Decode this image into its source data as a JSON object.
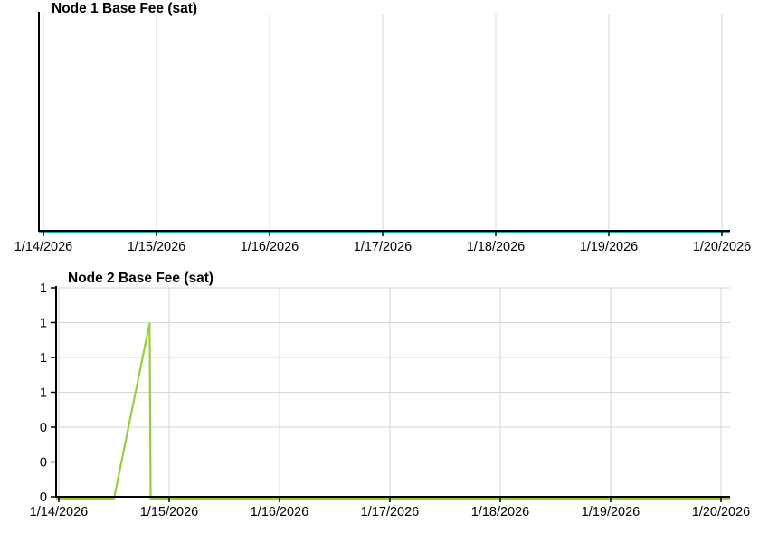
{
  "page": {
    "background": "#ffffff"
  },
  "colors": {
    "axis": "#000000",
    "gridline": "#d6d6d6",
    "tick_label_text": "#000000",
    "node1_line": "#35a2ac",
    "node2_line": "#9bcc3a"
  },
  "chart_data": [
    {
      "id": "node1",
      "type": "line",
      "title": "Node 1 Base Fee (sat)",
      "x_unit": "days since 1/14/2026",
      "x_tick_labels": [
        "1/14/2026",
        "1/15/2026",
        "1/16/2026",
        "1/17/2026",
        "1/18/2026",
        "1/19/2026",
        "1/20/2026"
      ],
      "x_tick_days": [
        0,
        1,
        2,
        3,
        4,
        5,
        6
      ],
      "y_tick_labels": [],
      "ylim": [
        0,
        1.2
      ],
      "grid": "vertical-only",
      "legend": "none",
      "series": [
        {
          "name": "Node 1 Base Fee",
          "color": "#35a2ac",
          "points": [
            [
              -0.04,
              0
            ],
            [
              6.07,
              0
            ]
          ]
        }
      ]
    },
    {
      "id": "node2",
      "type": "line",
      "title": "Node 2 Base Fee (sat)",
      "x_unit": "days since 1/14/2026",
      "x_tick_labels": [
        "1/14/2026",
        "1/15/2026",
        "1/16/2026",
        "1/17/2026",
        "1/18/2026",
        "1/19/2026",
        "1/20/2026"
      ],
      "x_tick_days": [
        0,
        1,
        2,
        3,
        4,
        5,
        6
      ],
      "y_tick_labels": [
        "1",
        "1",
        "1",
        "1",
        "0",
        "0",
        "0"
      ],
      "y_tick_values": [
        1.2,
        1.0,
        0.8,
        0.6,
        0.4,
        0.2,
        0
      ],
      "ylim": [
        0,
        1.2
      ],
      "grid": "both",
      "legend": "none",
      "series": [
        {
          "name": "Node 2 Base Fee",
          "color": "#9bcc3a",
          "points": [
            [
              -0.025,
              0
            ],
            [
              0.5,
              0
            ],
            [
              0.823,
              1
            ],
            [
              0.832,
              0
            ],
            [
              6.08,
              0
            ]
          ]
        }
      ]
    }
  ]
}
